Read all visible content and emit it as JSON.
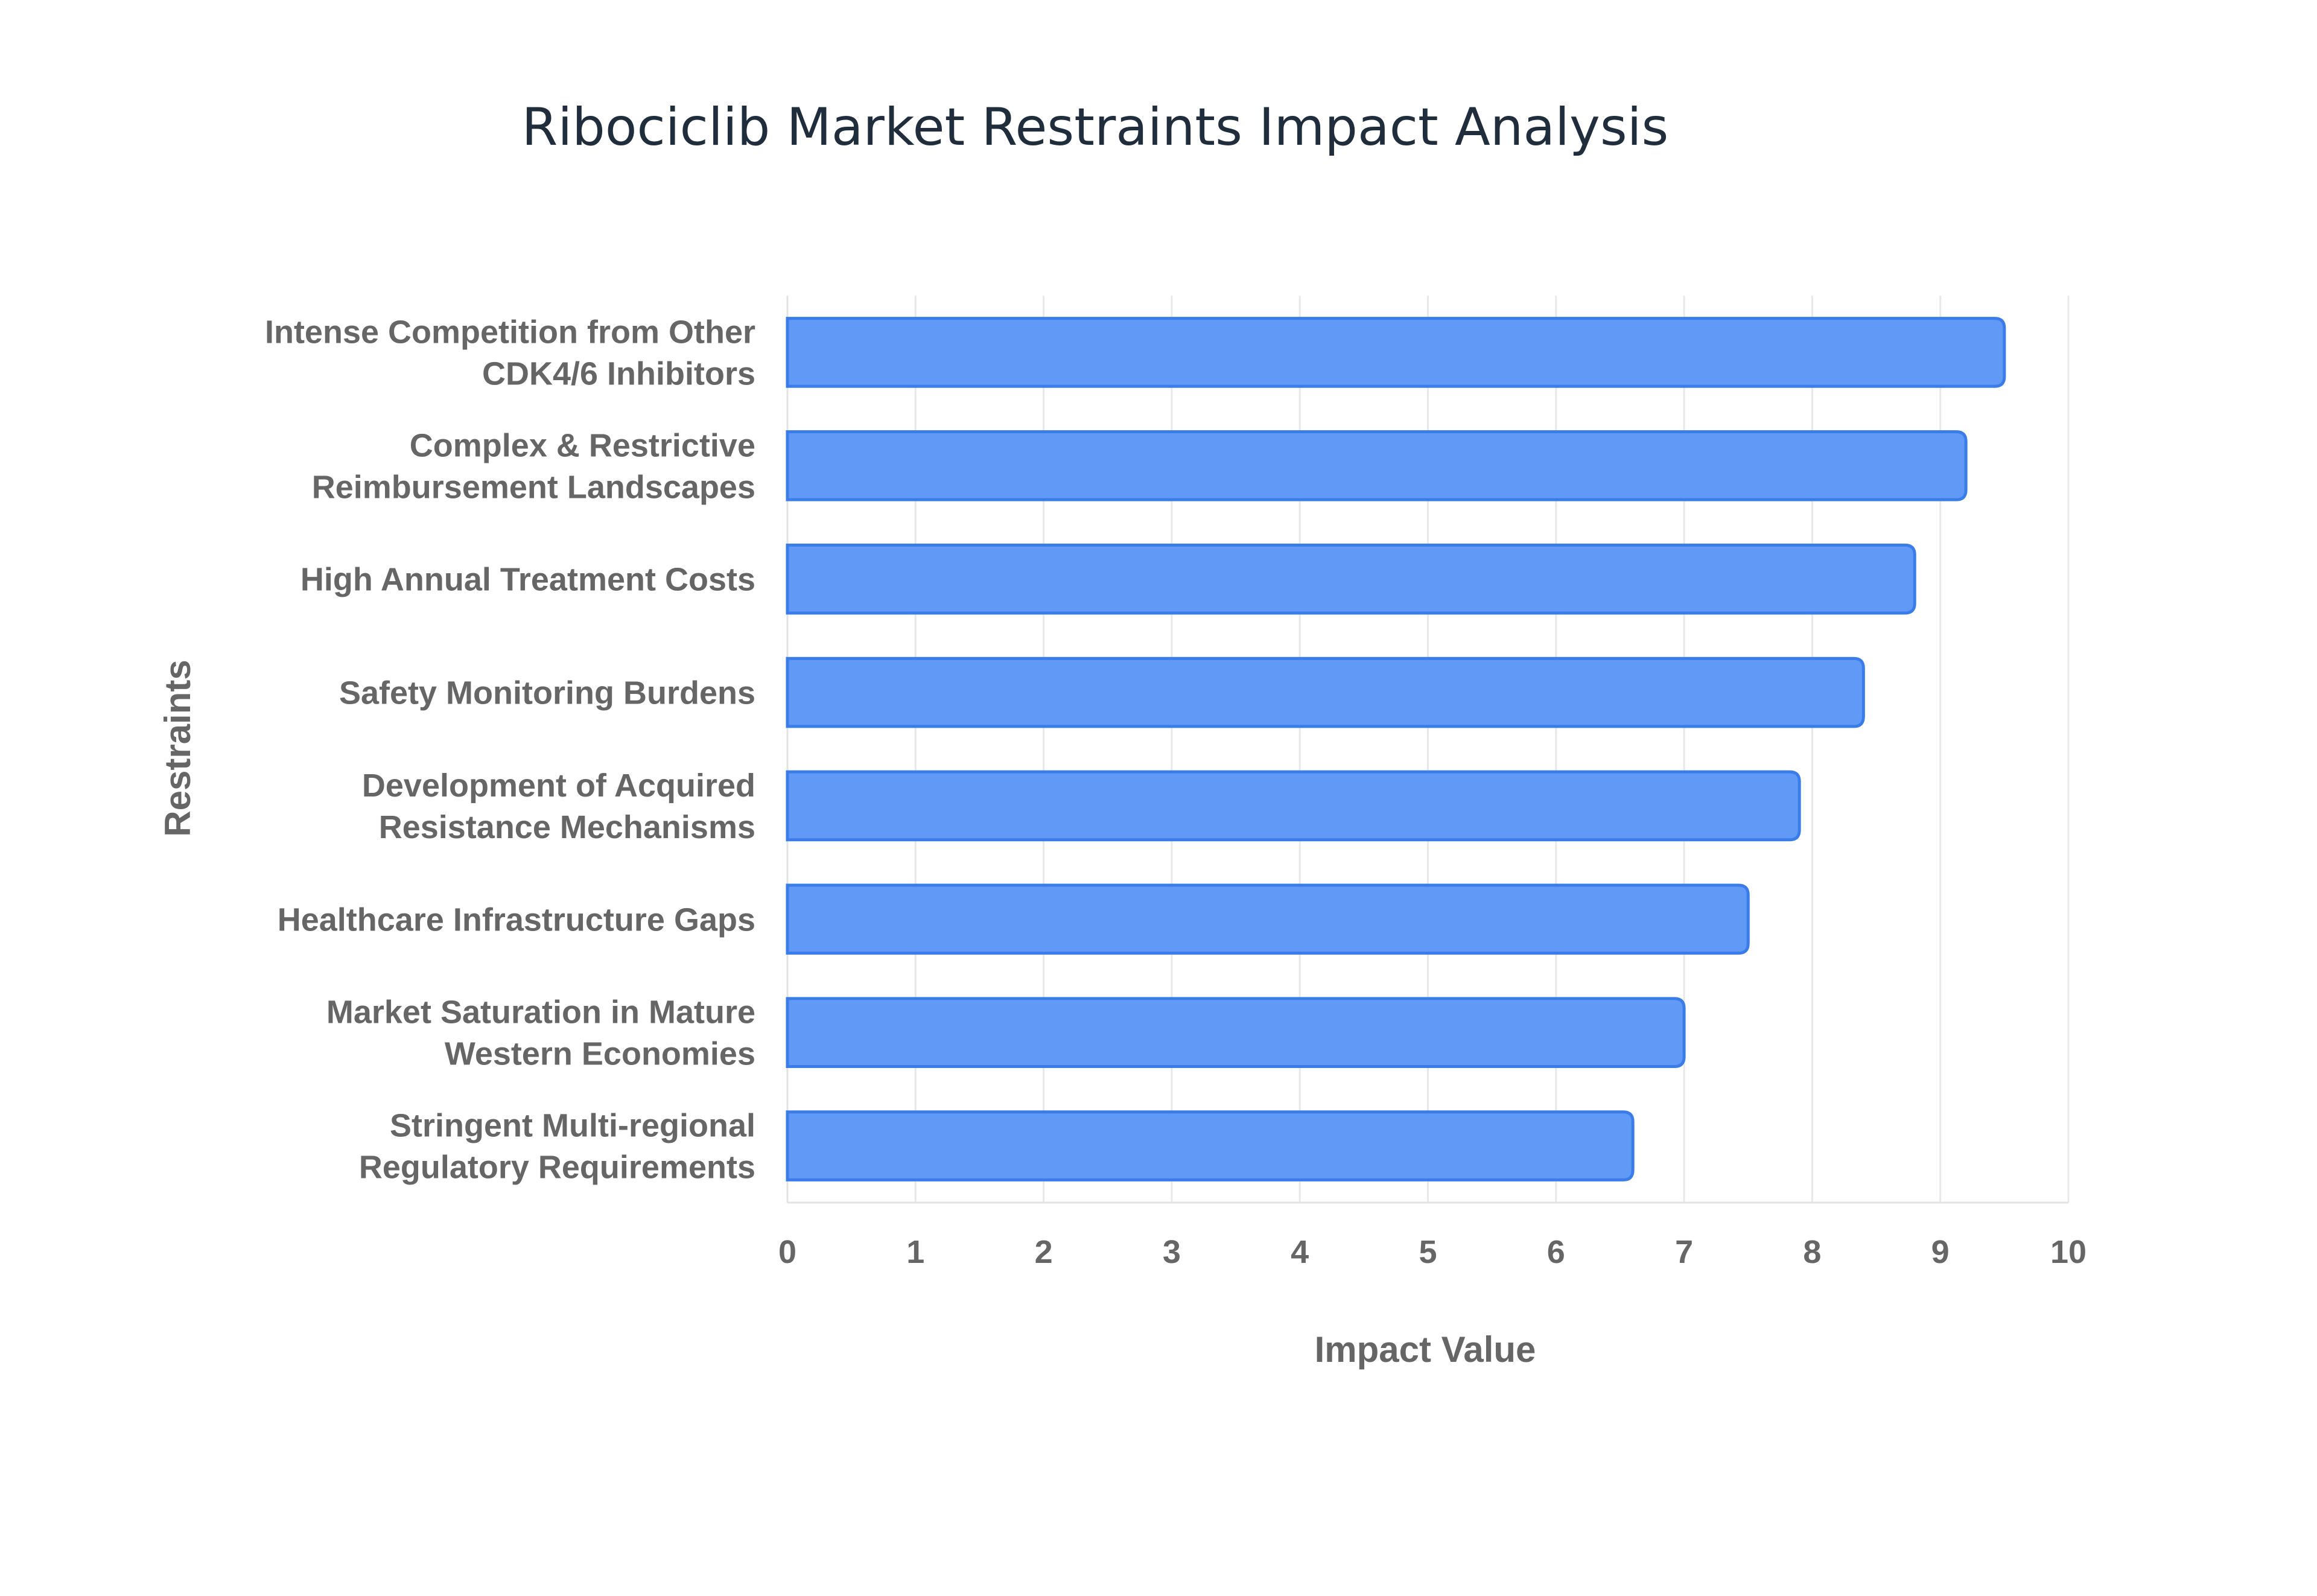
{
  "chart_data": {
    "type": "bar",
    "orientation": "horizontal",
    "title": "Ribociclib Market Restraints Impact Analysis",
    "xlabel": "Impact Value",
    "ylabel": "Restraints",
    "xlim": [
      0,
      10
    ],
    "xticks": [
      "0",
      "1",
      "2",
      "3",
      "4",
      "5",
      "6",
      "7",
      "8",
      "9",
      "10"
    ],
    "grid": true,
    "legend": "none",
    "colors": {
      "bar_fill": "#6199f7",
      "bar_stroke": "#3b7de8",
      "title": "#1f2d3d",
      "labels": "#666666"
    },
    "categories": [
      [
        "Intense Competition from Other",
        "CDK4/6 Inhibitors"
      ],
      [
        "Complex & Restrictive",
        "Reimbursement Landscapes"
      ],
      [
        "High Annual Treatment Costs"
      ],
      [
        "Safety Monitoring Burdens"
      ],
      [
        "Development of Acquired",
        "Resistance Mechanisms"
      ],
      [
        "Healthcare Infrastructure Gaps"
      ],
      [
        "Market Saturation in Mature",
        "Western Economies"
      ],
      [
        "Stringent Multi-regional",
        "Regulatory Requirements"
      ]
    ],
    "values": [
      9.5,
      9.2,
      8.8,
      8.4,
      7.9,
      7.5,
      7.0,
      6.6
    ]
  }
}
